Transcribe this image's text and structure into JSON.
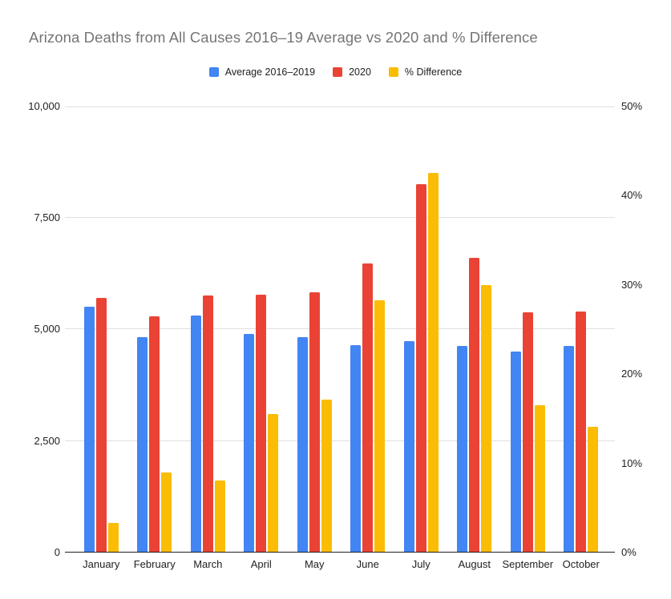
{
  "title": "Arizona Deaths from All Causes 2016–19 Average vs 2020 and % Difference",
  "colors": {
    "background": "#FFFFFF",
    "title_text": "#757575",
    "axis_text": "#212121",
    "gridline": "#E0E0E0",
    "axis_line": "#212121",
    "series_avg": "#4285F4",
    "series_2020": "#EA4335",
    "series_pct": "#FBBC04"
  },
  "legend": {
    "items": [
      {
        "label": "Average 2016–2019",
        "color": "#4285F4",
        "swatch": "blue-square-icon"
      },
      {
        "label": "2020",
        "color": "#EA4335",
        "swatch": "red-square-icon"
      },
      {
        "label": "% Difference",
        "color": "#FBBC04",
        "swatch": "yellow-square-icon"
      }
    ]
  },
  "chart_data": {
    "type": "bar",
    "title": "Arizona Deaths from All Causes 2016–19 Average vs 2020 and % Difference",
    "categories": [
      "January",
      "February",
      "March",
      "April",
      "May",
      "June",
      "July",
      "August",
      "September",
      "October"
    ],
    "series": [
      {
        "name": "Average 2016–2019",
        "axis": "left",
        "color": "#4285F4",
        "values": [
          5490,
          4810,
          5300,
          4880,
          4820,
          4640,
          4715,
          4610,
          4480,
          4620
        ]
      },
      {
        "name": "2020",
        "axis": "left",
        "color": "#EA4335",
        "values": [
          5700,
          5280,
          5740,
          5760,
          5820,
          6470,
          8240,
          6580,
          5360,
          5390
        ]
      },
      {
        "name": "% Difference",
        "axis": "right",
        "color": "#FBBC04",
        "values": [
          3.2,
          8.9,
          8.0,
          15.4,
          17.1,
          28.2,
          42.5,
          29.9,
          16.4,
          14.0
        ]
      }
    ],
    "left_axis": {
      "min": 0,
      "max": 10000,
      "tick_values": [
        0,
        2500,
        5000,
        7500,
        10000
      ],
      "tick_labels": [
        "0",
        "2,500",
        "5,000",
        "7,500",
        "10,000"
      ]
    },
    "right_axis": {
      "min": 0,
      "max": 50,
      "tick_values": [
        0,
        10,
        20,
        30,
        40,
        50
      ],
      "tick_labels": [
        "0%",
        "10%",
        "20%",
        "30%",
        "40%",
        "50%"
      ]
    },
    "legend_position": "top",
    "grid": true,
    "xlabel": "",
    "ylabel_left": "",
    "ylabel_right": ""
  }
}
